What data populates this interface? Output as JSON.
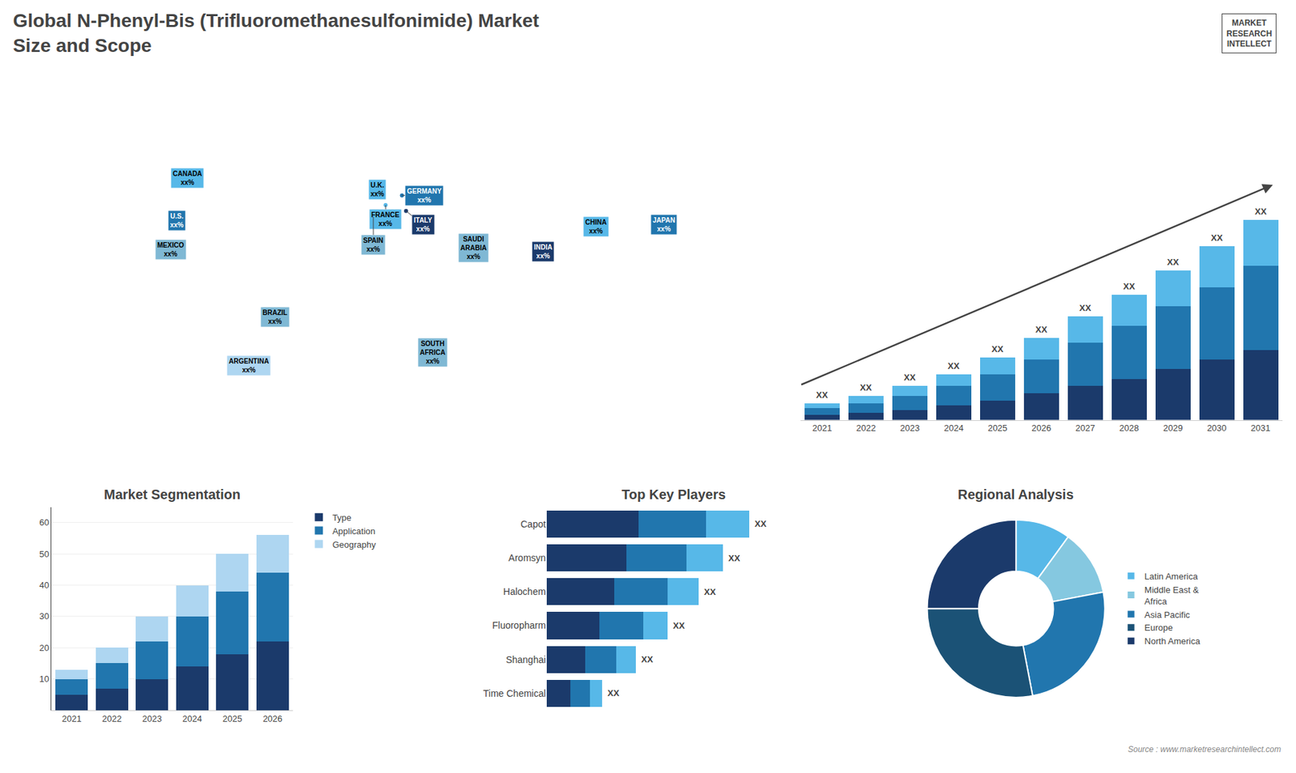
{
  "title": "Global N-Phenyl-Bis (Trifluoromethanesulfonimide) Market\nSize and Scope",
  "annotations": [
    "MARKET\nRESEARCH\nINTELLECT",
    "Source : www.marketresearchintellect.com"
  ],
  "chart_data": [
    {
      "type": "scatter",
      "x": [
        -100,
        -95,
        -103,
        -52,
        -65,
        -2,
        2,
        -4,
        10,
        12,
        45,
        25,
        105,
        79,
        138
      ],
      "values": [
        38,
        60,
        23,
        -12,
        -37,
        54,
        46,
        40,
        51,
        43,
        24,
        -30,
        35,
        22,
        36
      ],
      "value_labels": [
        "U.S.\nxx%",
        "CANADA\nxx%",
        "MEXICO\nxx%",
        "BRAZIL\nxx%",
        "ARGENTINA\nxx%",
        "U.K.\nxx%",
        "FRANCE\nxx%",
        "SPAIN\nxx%",
        "GERMANY\nxx%",
        "ITALY\nxx%",
        "SAUDI\nARABIA\nxx%",
        "SOUTH\nAFRICA\nxx%",
        "CHINA\nxx%",
        "INDIA\nxx%",
        "JAPAN\nxx%"
      ],
      "colors": [
        "#2176ae",
        "#57b8e8",
        "#7fb8d4",
        "#7fb8d4",
        "#aed6f1",
        "#57b8e8",
        "#57b8e8",
        "#7fb8d4",
        "#2176ae",
        "#1b3a6b",
        "#7fb8d4",
        "#7fb8d4",
        "#57b8e8",
        "#1b3a6b",
        "#2176ae"
      ],
      "xlim": [
        -180,
        180
      ],
      "ylim": [
        -65,
        85
      ],
      "tick_labels": false,
      "grid": false
    },
    {
      "type": "bar",
      "stacked": true,
      "categories": [
        "2021",
        "2022",
        "2023",
        "2024",
        "2025",
        "2026",
        "2027",
        "2028",
        "2029",
        "2030",
        "2031"
      ],
      "series": [
        {
          "color": "#1b3a6b",
          "values": [
            2,
            3,
            4,
            6,
            8,
            11,
            14,
            17,
            21,
            25,
            29
          ]
        },
        {
          "color": "#2176ae",
          "values": [
            3,
            4,
            6,
            8,
            11,
            14,
            18,
            22,
            26,
            30,
            35
          ]
        },
        {
          "color": "#57b8e8",
          "values": [
            2,
            3,
            4,
            5,
            7,
            9,
            11,
            13,
            15,
            17,
            19
          ]
        }
      ],
      "annotations": [
        "XX",
        "XX",
        "XX",
        "XX",
        "XX",
        "XX",
        "XX",
        "XX",
        "XX",
        "XX",
        "XX"
      ],
      "ylim": [
        0,
        120.35
      ],
      "tick_labels": "x",
      "grid": false
    },
    {
      "type": "bar",
      "title": "Market Segmentation",
      "stacked": true,
      "categories": [
        "2021",
        "2022",
        "2023",
        "2024",
        "2025",
        "2026"
      ],
      "series": [
        {
          "name": "Type",
          "color": "#1b3a6b",
          "values": [
            5,
            7,
            10,
            14,
            18,
            22
          ]
        },
        {
          "name": "Application",
          "color": "#2176ae",
          "values": [
            5,
            8,
            12,
            16,
            20,
            22
          ]
        },
        {
          "name": "Geography",
          "color": "#aed6f1",
          "values": [
            3,
            5,
            8,
            10,
            12,
            12
          ]
        }
      ],
      "ylim": [
        0,
        65
      ],
      "yticks": [
        10,
        20,
        30,
        40,
        50,
        60
      ],
      "grid": true,
      "legend": "right"
    },
    {
      "type": "bar",
      "title": "Top Key Players",
      "orientation": "horizontal",
      "stacked": true,
      "categories": [
        "Capot",
        "Aromsyn",
        "Halochem",
        "Fluoropharm",
        "Shanghai",
        "Time Chemical"
      ],
      "series": [
        {
          "color": "#1b3a6b",
          "values": [
            38,
            33,
            28,
            22,
            16,
            10
          ]
        },
        {
          "color": "#2176ae",
          "values": [
            28,
            25,
            22,
            18,
            13,
            8
          ]
        },
        {
          "color": "#57b8e8",
          "values": [
            18,
            15,
            13,
            10,
            8,
            5
          ]
        }
      ],
      "annotations": [
        "XX",
        "XX",
        "XX",
        "XX",
        "XX",
        "XX"
      ],
      "xlim": [
        0,
        105
      ],
      "tick_labels": "y",
      "grid": false
    },
    {
      "type": "pie",
      "title": "Regional Analysis",
      "categories": [
        "Latin America",
        "Middle East &\nAfrica",
        "Asia Pacific",
        "Europe",
        "North America"
      ],
      "values": [
        10,
        12,
        25,
        28,
        25
      ],
      "colors": [
        "#57b8e8",
        "#85c8e0",
        "#2176ae",
        "#1b5276",
        "#1b3a6b"
      ],
      "legend": "right"
    }
  ]
}
